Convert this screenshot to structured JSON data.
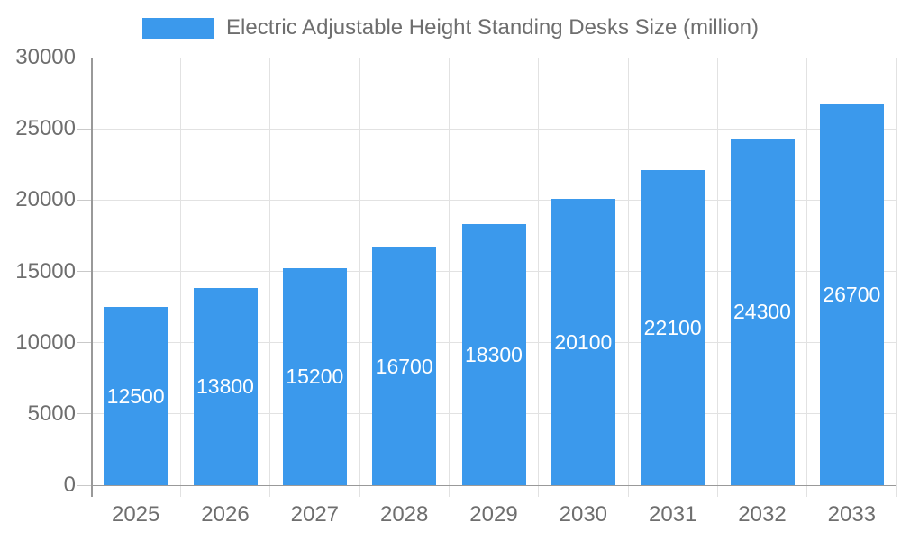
{
  "legend": {
    "swatch_color": "#3B99EC"
  },
  "chart_data": {
    "type": "bar",
    "series_name": "Electric Adjustable Height Standing Desks Size (million)",
    "title": "Electric Adjustable Height Standing Desks Size (million)",
    "xlabel": "",
    "ylabel": "",
    "categories": [
      "2025",
      "2026",
      "2027",
      "2028",
      "2029",
      "2030",
      "2031",
      "2032",
      "2033"
    ],
    "values": [
      12500,
      13800,
      15200,
      16700,
      18300,
      20100,
      22100,
      24300,
      26700
    ],
    "ylim": [
      0,
      30000
    ],
    "yticks": [
      0,
      5000,
      10000,
      15000,
      20000,
      25000,
      30000
    ],
    "grid": true,
    "legend_position": "top",
    "value_label_position": "inside-center",
    "colors": {
      "bar": "#3B99EC",
      "value_label": "#FFFFFF",
      "axis_line": "#999999",
      "grid_line": "#E2E2E2",
      "tick": "#C9C9C9",
      "text": "#6E6E6E"
    }
  }
}
